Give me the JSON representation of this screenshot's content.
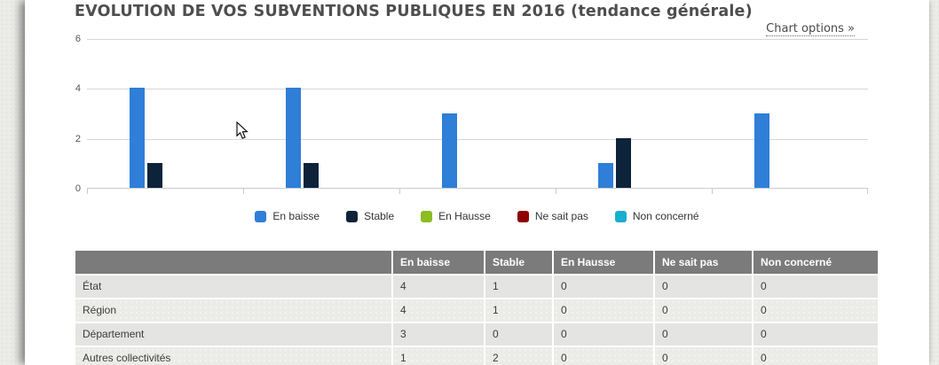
{
  "header": {
    "title": "EVOLUTION DE VOS SUBVENTIONS PUBLIQUES EN 2016 (tendance générale)",
    "chart_options_label": "Chart options »"
  },
  "chart_data": {
    "type": "bar",
    "title": "EVOLUTION DE VOS SUBVENTIONS PUBLIQUES EN 2016 (tendance générale)",
    "categories": [
      "État",
      "Région",
      "Département",
      "Autres collectivités",
      ""
    ],
    "series": [
      {
        "name": "En baisse",
        "color": "#2f7ed8",
        "values": [
          4,
          4,
          3,
          1,
          3
        ]
      },
      {
        "name": "Stable",
        "color": "#0d233a",
        "values": [
          1,
          1,
          0,
          2,
          0
        ]
      },
      {
        "name": "En Hausse",
        "color": "#8bbc21",
        "values": [
          0,
          0,
          0,
          0,
          0
        ]
      },
      {
        "name": "Ne sait pas",
        "color": "#910000",
        "values": [
          0,
          0,
          0,
          0,
          0
        ]
      },
      {
        "name": "Non concerné",
        "color": "#1aadce",
        "values": [
          0,
          0,
          0,
          0,
          0
        ]
      }
    ],
    "xlabel": "",
    "ylabel": "",
    "ylim": [
      0,
      6
    ],
    "yticks": [
      0,
      2,
      4,
      6
    ],
    "grid": true,
    "legend_position": "bottom"
  },
  "table": {
    "columns": [
      "",
      "En baisse",
      "Stable",
      "En Hausse",
      "Ne sait pas",
      "Non concerné"
    ],
    "rows": [
      {
        "label": "État",
        "values": [
          "4",
          "1",
          "0",
          "0",
          "0"
        ]
      },
      {
        "label": "Région",
        "values": [
          "4",
          "1",
          "0",
          "0",
          "0"
        ]
      },
      {
        "label": "Département",
        "values": [
          "3",
          "0",
          "0",
          "0",
          "0"
        ]
      },
      {
        "label": "Autres collectivités",
        "values": [
          "1",
          "2",
          "0",
          "0",
          "0"
        ]
      }
    ]
  },
  "colors": {
    "table_header_bg": "#7b7b7b",
    "gridline": "#d6d6d6",
    "axis": "#c6ccd2",
    "title_text": "#4e4e4e"
  }
}
